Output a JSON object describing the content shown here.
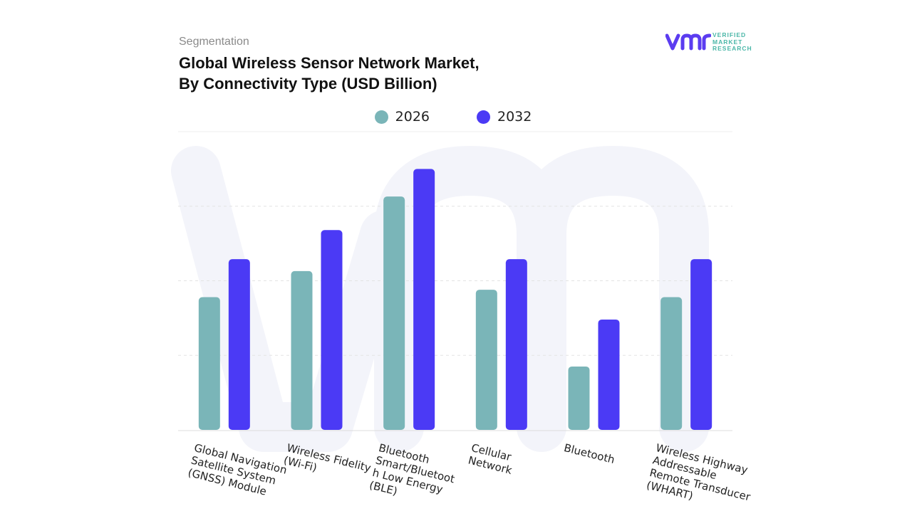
{
  "header": {
    "segment_label": "Segmentation",
    "title_lines": [
      "Global Wireless Sensor Network Market,",
      "By Connectivity Type (USD Billion)"
    ]
  },
  "logo": {
    "mark_text": "vmr",
    "text_lines": [
      "VERIFIED",
      "MARKET",
      "RESEARCH"
    ],
    "mark_color": "#5b3cf0",
    "text_color": "#4bb7a8"
  },
  "colors": {
    "series_2026": "#7ab5b8",
    "series_2032": "#4b3af5",
    "grid": "#e3e3e3",
    "watermark": "#f3f4fa"
  },
  "chart_data": {
    "type": "bar",
    "title": "Global Wireless Sensor Network Market, By Connectivity Type (USD Billion)",
    "categories": [
      [
        "Global Navigation",
        "Satellite System",
        "(GNSS) Module"
      ],
      [
        "Wireless Fidelity",
        "(Wi-Fi)"
      ],
      [
        "Bluetooth",
        "Smart/Bluetoot",
        "h Low Energy",
        "(BLE)"
      ],
      [
        "Cellular",
        "Network"
      ],
      [
        "Bluetooth"
      ],
      [
        "Wireless Highway",
        "Addressable",
        "Remote Transducer",
        "(WHART)"
      ]
    ],
    "series": [
      {
        "name": "2026",
        "values": [
          1.78,
          2.13,
          3.13,
          1.88,
          0.85,
          1.78
        ]
      },
      {
        "name": "2032",
        "values": [
          2.29,
          2.68,
          3.5,
          2.29,
          1.48,
          2.29
        ]
      }
    ],
    "ylim": [
      0,
      4.0
    ],
    "grid": true,
    "legend": "top-center",
    "xlabel": "",
    "ylabel": ""
  }
}
